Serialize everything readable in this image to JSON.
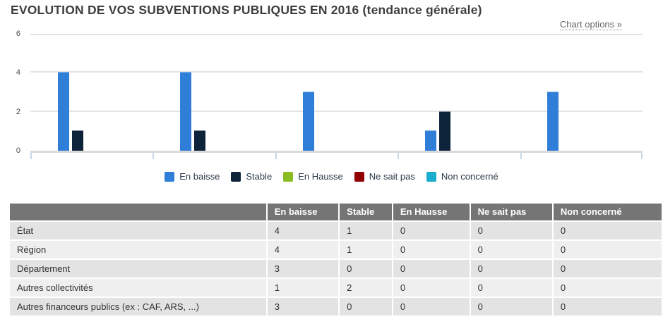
{
  "header": {
    "title": "EVOLUTION DE VOS SUBVENTIONS PUBLIQUES EN 2016 (tendance générale)",
    "chart_options_label": "Chart options »"
  },
  "chart_data": {
    "type": "bar",
    "title": "EVOLUTION DE VOS SUBVENTIONS PUBLIQUES EN 2016 (tendance générale)",
    "categories": [
      "État",
      "Région",
      "Département",
      "Autres collectivités",
      "Autres financeurs publics (ex : CAF, ARS, ...)"
    ],
    "series": [
      {
        "name": "En baisse",
        "color": "#2f7ed8",
        "values": [
          4,
          4,
          3,
          1,
          3
        ]
      },
      {
        "name": "Stable",
        "color": "#0d233a",
        "values": [
          1,
          1,
          0,
          2,
          0
        ]
      },
      {
        "name": "En Hausse",
        "color": "#8bbc21",
        "values": [
          0,
          0,
          0,
          0,
          0
        ]
      },
      {
        "name": "Ne sait pas",
        "color": "#910000",
        "values": [
          0,
          0,
          0,
          0,
          0
        ]
      },
      {
        "name": "Non concerné",
        "color": "#1aadce",
        "values": [
          0,
          0,
          0,
          0,
          0
        ]
      }
    ],
    "xlabel": "",
    "ylabel": "",
    "ylim": [
      0,
      6
    ],
    "yticks": [
      0,
      2,
      4,
      6
    ],
    "grid": true,
    "legend_position": "bottom",
    "gridline_color": "#e3e3e3",
    "axis_line_color": "#d9d9d9",
    "tick_color": "#c9d6ea"
  },
  "table": {
    "columns": [
      "",
      "En baisse",
      "Stable",
      "En Hausse",
      "Ne sait pas",
      "Non concerné"
    ],
    "rows": [
      {
        "label": "État",
        "values": [
          4,
          1,
          0,
          0,
          0
        ]
      },
      {
        "label": "Région",
        "values": [
          4,
          1,
          0,
          0,
          0
        ]
      },
      {
        "label": "Département",
        "values": [
          3,
          0,
          0,
          0,
          0
        ]
      },
      {
        "label": "Autres collectivités",
        "values": [
          1,
          2,
          0,
          0,
          0
        ]
      },
      {
        "label": "Autres financeurs publics (ex : CAF, ARS, ...)",
        "values": [
          3,
          0,
          0,
          0,
          0
        ]
      }
    ],
    "header_bg": "#757575",
    "row_dark_bg": "#e3e3e3",
    "row_light_bg": "#efefef"
  }
}
